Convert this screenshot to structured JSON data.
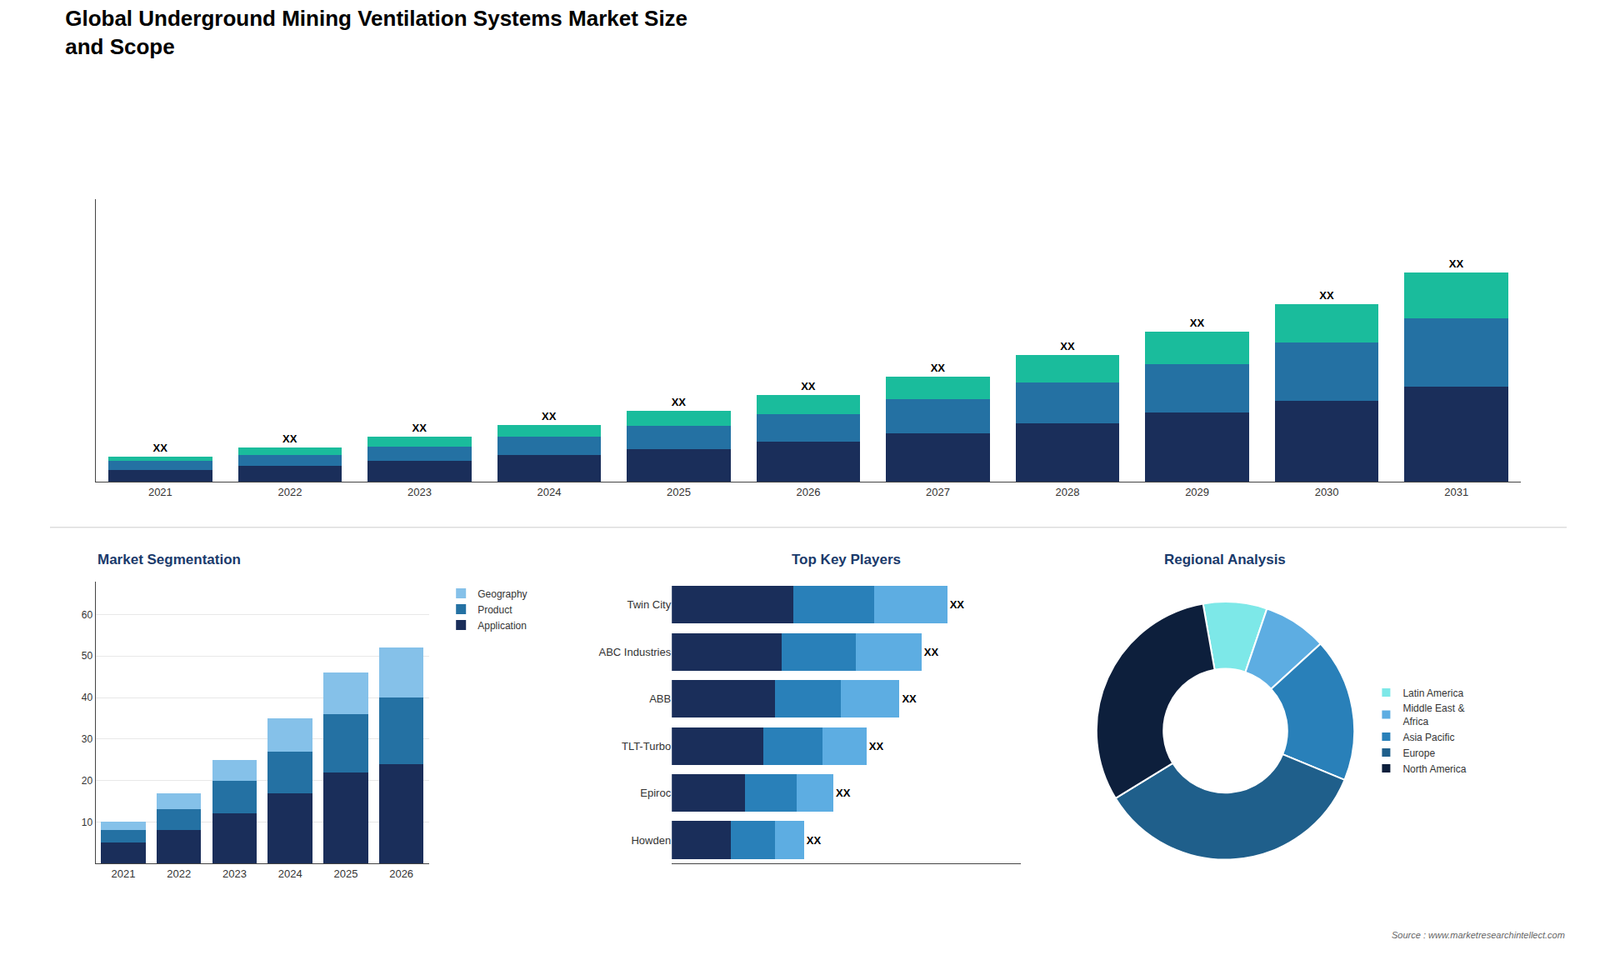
{
  "title": "Global Underground Mining Ventilation Systems Market Size\nand Scope",
  "annotations": [
    "Source : www.marketresearchintellect.com"
  ],
  "chart_data": [
    {
      "type": "bar",
      "stacked": true,
      "categories": [
        "2021",
        "2022",
        "2023",
        "2024",
        "2025",
        "2026",
        "2027",
        "2028",
        "2029",
        "2030",
        "2031"
      ],
      "series": [
        {
          "color": "#1a2e5a",
          "values": [
            1.0,
            1.3,
            1.7,
            2.2,
            2.7,
            3.3,
            4.0,
            4.8,
            5.7,
            6.7,
            7.9
          ]
        },
        {
          "color": "#2471a3",
          "values": [
            0.7,
            0.9,
            1.2,
            1.5,
            1.9,
            2.3,
            2.8,
            3.4,
            4.0,
            4.8,
            5.6
          ]
        },
        {
          "color": "#1abc9c",
          "values": [
            0.4,
            0.6,
            0.8,
            1.0,
            1.3,
            1.6,
            1.9,
            2.3,
            2.7,
            3.2,
            3.8
          ],
          "value_labels": [
            "XX",
            "XX",
            "XX",
            "XX",
            "XX",
            "XX",
            "XX",
            "XX",
            "XX",
            "XX",
            "XX"
          ]
        }
      ],
      "ylim": [
        0,
        23.355
      ],
      "tick_labels": "x",
      "grid": false
    },
    {
      "type": "bar",
      "stacked": true,
      "title": "Market Segmentation",
      "categories": [
        "2021",
        "2022",
        "2023",
        "2024",
        "2025",
        "2026"
      ],
      "series": [
        {
          "name": "Application",
          "color": "#1a2e5a",
          "values": [
            5,
            8,
            12,
            17,
            22,
            24
          ]
        },
        {
          "name": "Product",
          "color": "#2471a3",
          "values": [
            3,
            5,
            8,
            10,
            14,
            16
          ]
        },
        {
          "name": "Geography",
          "color": "#85c1e9",
          "values": [
            2,
            4,
            5,
            8,
            10,
            12
          ]
        }
      ],
      "ylim": [
        0,
        68
      ],
      "yticks": [
        10,
        20,
        30,
        40,
        50,
        60
      ],
      "grid": true,
      "legend": "upper right"
    },
    {
      "type": "bar",
      "stacked": true,
      "orientation": "horizontal",
      "title": "Top Key Players",
      "categories": [
        "Twin City",
        "ABC Industries",
        "ABB",
        "TLT-Turbo",
        "Epiroc",
        "Howden"
      ],
      "series": [
        {
          "color": "#1a2e5a",
          "values": [
            0.33,
            0.3,
            0.28,
            0.25,
            0.2,
            0.16
          ]
        },
        {
          "color": "#2980b9",
          "values": [
            0.22,
            0.2,
            0.18,
            0.16,
            0.14,
            0.12
          ]
        },
        {
          "color": "#5dade2",
          "values": [
            0.2,
            0.18,
            0.16,
            0.12,
            0.1,
            0.08
          ],
          "value_labels": [
            "XX",
            "XX",
            "XX",
            "XX",
            "XX",
            "XX"
          ]
        }
      ],
      "xlim": [
        0,
        0.95
      ],
      "tick_labels": "y",
      "grid": false
    },
    {
      "type": "pie",
      "title": "Regional Analysis",
      "categories": [
        "Latin America",
        "Middle East &\nAfrica",
        "Asia Pacific",
        "Europe",
        "North America"
      ],
      "values": [
        8,
        8,
        18,
        35,
        31
      ],
      "colors": [
        "#7de8e8",
        "#5dade2",
        "#2980b9",
        "#1f5f8b",
        "#0d1f3c"
      ],
      "legend": "right"
    }
  ]
}
